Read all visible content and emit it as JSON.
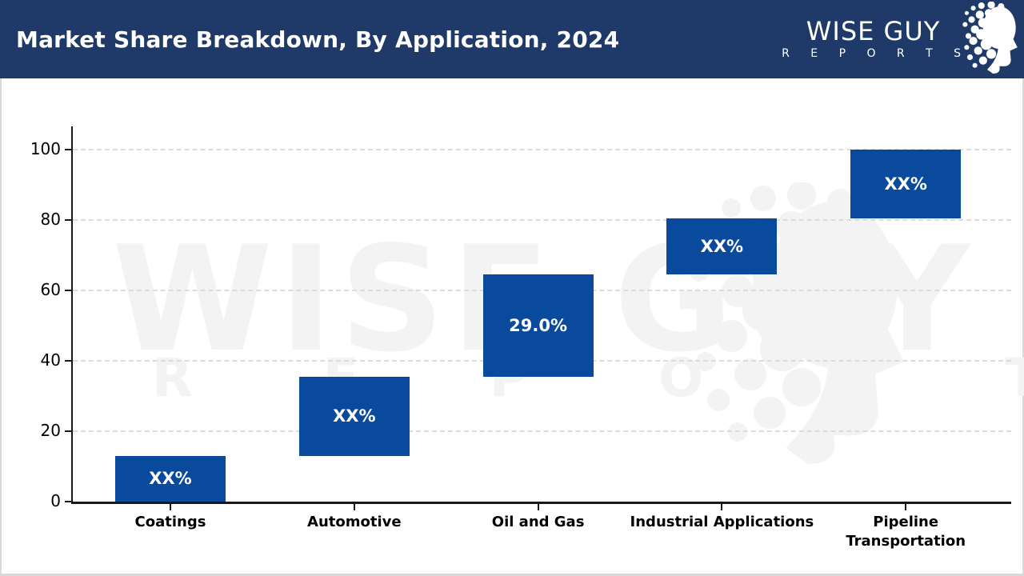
{
  "header": {
    "title": "Market Share Breakdown, By Application, 2024",
    "brand": {
      "line1": "WISE GUY",
      "line2": "R E P O R T S"
    }
  },
  "watermark": {
    "line1": "WISE GUY",
    "line2": "R E P O R T S"
  },
  "colors": {
    "header_bg": "#1f3a68",
    "bar": "#0a4a9c",
    "axis": "#191919",
    "gridline": "#dcdcdc",
    "watermark": "#f3f3f3",
    "title_text": "#ffffff",
    "bar_label_text": "#ffffff",
    "tick_text": "#000000"
  },
  "chart_data": {
    "type": "bar",
    "subtype": "waterfall-floating-bars",
    "title": "Market Share Breakdown, By Application, 2024",
    "categories": [
      "Coatings",
      "Automotive",
      "Oil and Gas",
      "Industrial Applications",
      "Pipeline Transportation"
    ],
    "bars": [
      {
        "category": "Coatings",
        "start": 0,
        "end": 13,
        "value_label": "XX%"
      },
      {
        "category": "Automotive",
        "start": 13,
        "end": 35.5,
        "value_label": "XX%"
      },
      {
        "category": "Oil and Gas",
        "start": 35.5,
        "end": 64.5,
        "value_label": "29.0%"
      },
      {
        "category": "Industrial Applications",
        "start": 64.5,
        "end": 80.5,
        "value_label": "XX%"
      },
      {
        "category": "Pipeline Transportation",
        "start": 80.5,
        "end": 100,
        "value_label": "XX%"
      }
    ],
    "xlabel": "",
    "ylabel": "",
    "ylim": [
      0,
      100
    ],
    "yticks": [
      0,
      20,
      40,
      60,
      80,
      100
    ],
    "grid": "horizontal-dashed",
    "legend": "none"
  }
}
